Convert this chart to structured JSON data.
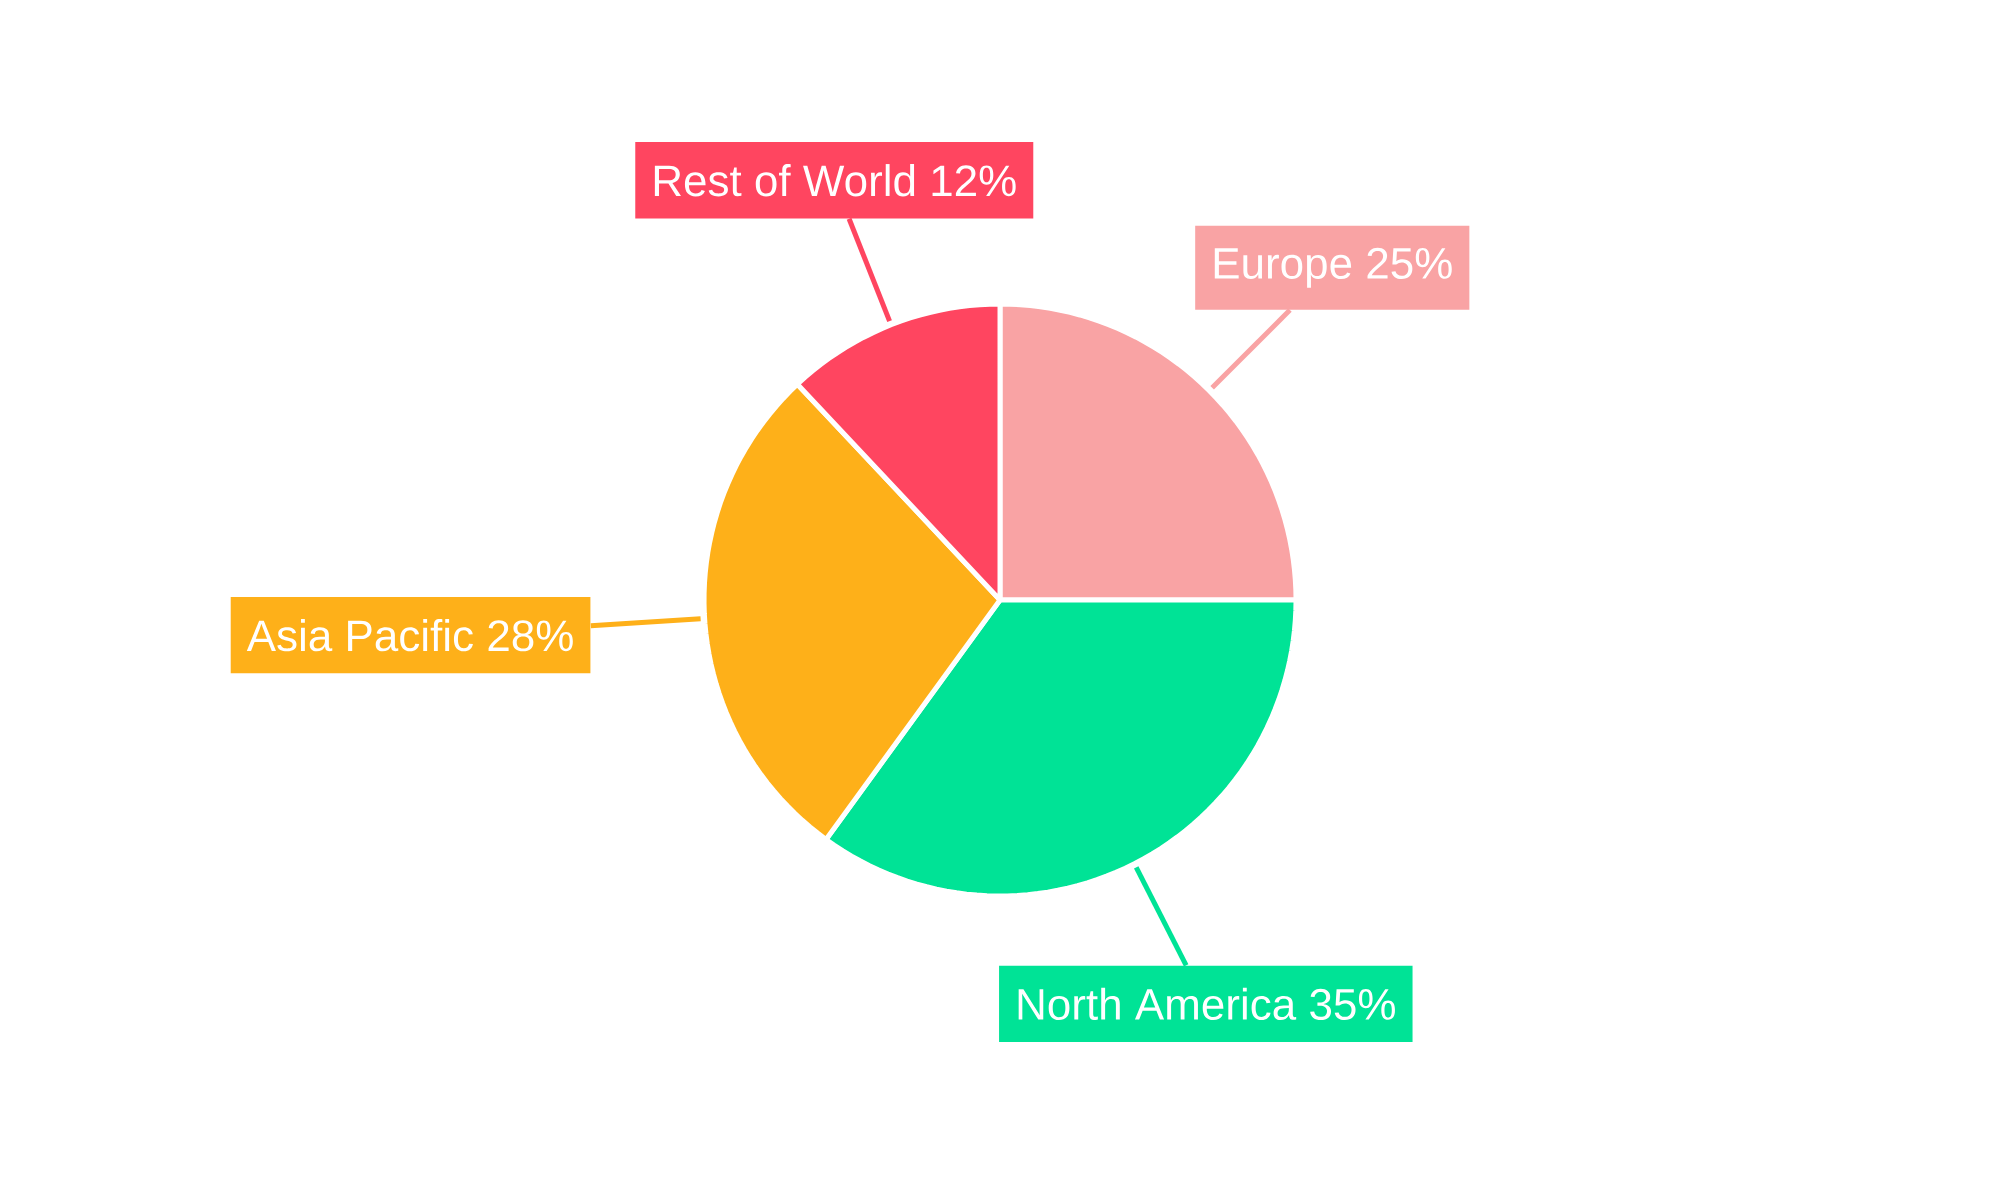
{
  "chart_data": {
    "type": "pie",
    "categories": [
      "Europe",
      "North America",
      "Asia Pacific",
      "Rest of World"
    ],
    "values": [
      25,
      35,
      28,
      12
    ],
    "value_labels": [
      "25%",
      "35%",
      "28%",
      "12%"
    ],
    "colors": [
      "#f9a3a4",
      "#00e396",
      "#feb019",
      "#ff4560"
    ]
  }
}
